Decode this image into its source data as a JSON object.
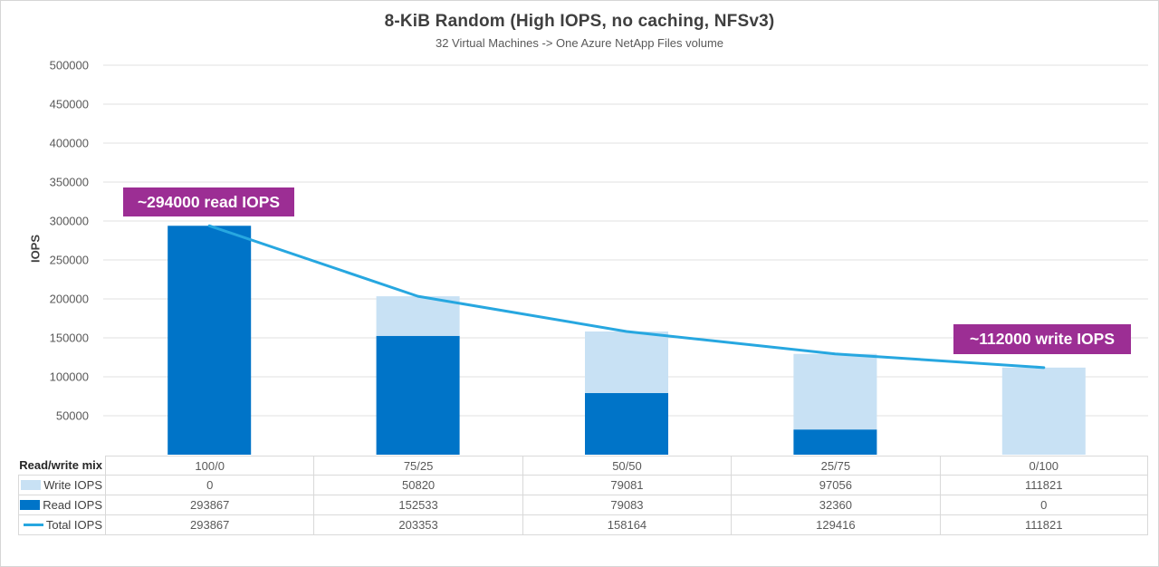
{
  "header": {
    "title": "8-KiB Random (High IOPS, no caching, NFSv3)",
    "subtitle": "32 Virtual Machines -> One Azure NetApp Files volume"
  },
  "chart_data": {
    "type": "bar",
    "subtype": "stacked-bars-with-total-line",
    "categories": [
      "100/0",
      "75/25",
      "50/50",
      "25/75",
      "0/100"
    ],
    "series": [
      {
        "name": "Write IOPS",
        "type": "bar",
        "stack_order": "top",
        "color": "#c8e1f4",
        "values": [
          0,
          50820,
          79081,
          97056,
          111821
        ]
      },
      {
        "name": "Read IOPS",
        "type": "bar",
        "stack_order": "bottom",
        "color": "#0074c8",
        "values": [
          293867,
          152533,
          79083,
          32360,
          0
        ]
      },
      {
        "name": "Total IOPS",
        "type": "line",
        "color": "#27a7e0",
        "values": [
          293867,
          203353,
          158164,
          129416,
          111821
        ]
      }
    ],
    "title": "8-KiB Random (High IOPS, no caching, NFSv3)",
    "subtitle": "32 Virtual Machines -> One Azure NetApp Files volume",
    "xlabel": "",
    "ylabel": "IOPS",
    "ylim": [
      0,
      500000
    ],
    "ytick_step": 50000,
    "grid": "horizontal",
    "legend_position": "table-row-labels",
    "annotations": [
      {
        "text": "~294000 read IOPS",
        "color": "#9c2e94"
      },
      {
        "text": "~112000 write IOPS",
        "color": "#9c2e94"
      }
    ],
    "table": {
      "row_header": "Read/write mix"
    }
  }
}
